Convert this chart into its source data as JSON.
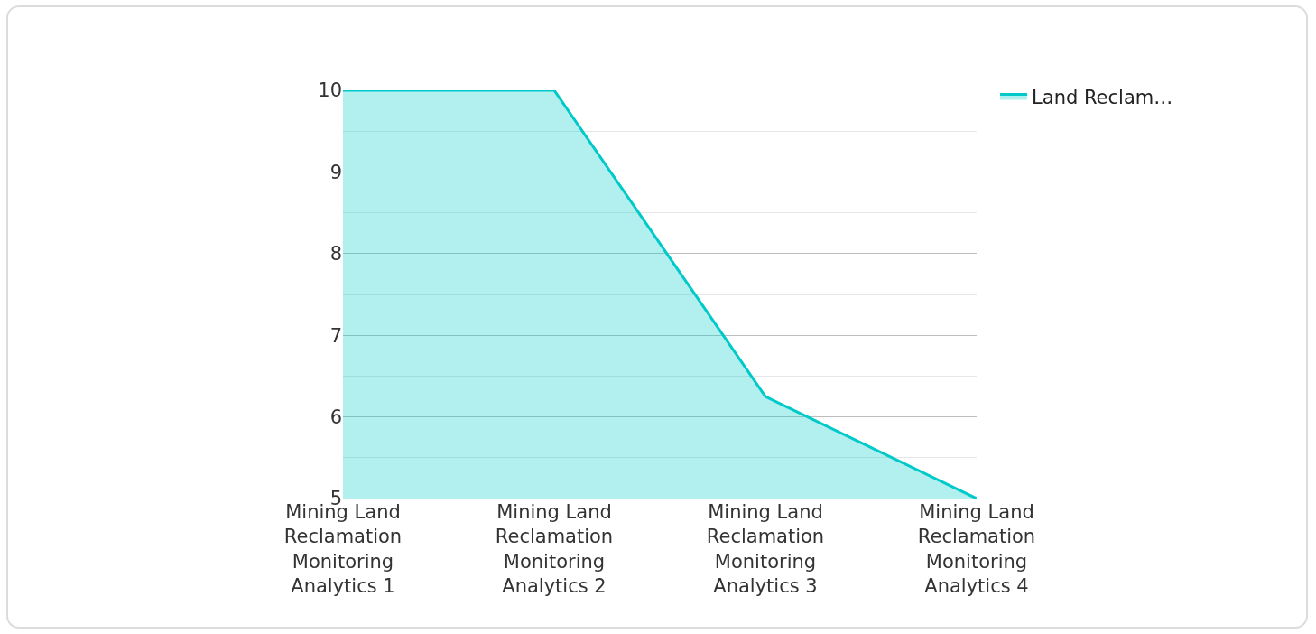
{
  "chart_data": {
    "type": "area",
    "categories": [
      "Mining Land Reclamation Monitoring Analytics 1",
      "Mining Land Reclamation Monitoring Analytics 2",
      "Mining Land Reclamation Monitoring Analytics 3",
      "Mining Land Reclamation Monitoring Analytics 4"
    ],
    "series": [
      {
        "name": "Land Reclam…",
        "color": "#00c9c9",
        "values": [
          10,
          10,
          6.25,
          5
        ]
      }
    ],
    "ylim": [
      5,
      10
    ],
    "yticks": [
      5,
      {
        "value": 5.5,
        "label": null
      },
      6,
      {
        "value": 6.5,
        "label": null
      },
      7,
      {
        "value": 7.5,
        "label": null
      },
      8,
      {
        "value": 8.5,
        "label": null
      },
      9,
      {
        "value": 9.5,
        "label": null
      },
      10
    ],
    "grid": "y",
    "legend": "top right",
    "marker": "none",
    "line_style": "solid"
  }
}
